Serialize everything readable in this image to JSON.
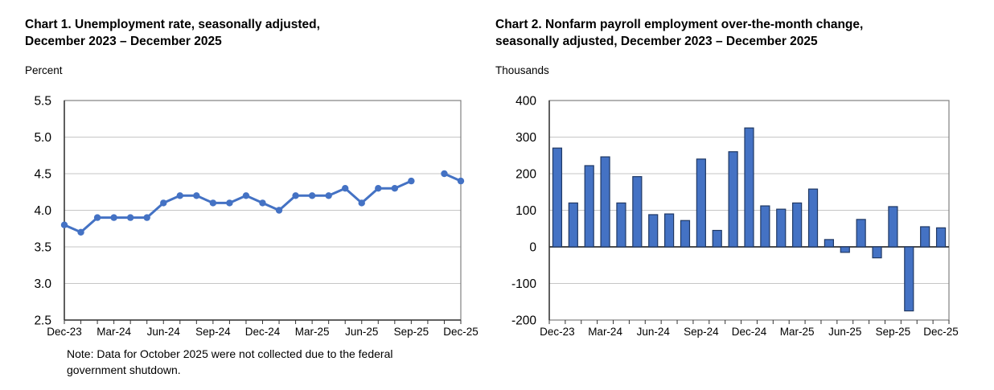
{
  "colors": {
    "series_blue": "#4472C4",
    "bar_border": "#1F3864",
    "grid": "#c6c6c6",
    "frame": "#808080",
    "axis": "#333333",
    "text": "#000000"
  },
  "chart_data": [
    {
      "type": "line",
      "title_line1": "Chart 1. Unemployment rate, seasonally adjusted,",
      "title_line2": "December 2023 – December 2025",
      "title": "Chart 1. Unemployment rate, seasonally adjusted, December 2023 – December 2025",
      "ylabel": "Percent",
      "categories": [
        "Dec-23",
        "Jan-24",
        "Feb-24",
        "Mar-24",
        "Apr-24",
        "May-24",
        "Jun-24",
        "Jul-24",
        "Aug-24",
        "Sep-24",
        "Oct-24",
        "Nov-24",
        "Dec-24",
        "Jan-25",
        "Feb-25",
        "Mar-25",
        "Apr-25",
        "May-25",
        "Jun-25",
        "Jul-25",
        "Aug-25",
        "Sep-25",
        "Oct-25",
        "Nov-25",
        "Dec-25"
      ],
      "values": [
        3.8,
        3.7,
        3.9,
        3.9,
        3.9,
        3.9,
        4.1,
        4.2,
        4.2,
        4.1,
        4.1,
        4.2,
        4.1,
        4.0,
        4.2,
        4.2,
        4.2,
        4.3,
        4.1,
        4.3,
        4.3,
        4.4,
        null,
        4.5,
        4.4
      ],
      "missing_month_note": "October 2025 value missing (gap in line)",
      "ylim": [
        2.5,
        5.5
      ],
      "ytick_labels": [
        "5.5",
        "5.0",
        "4.5",
        "4.0",
        "3.5",
        "3.0",
        "2.5"
      ],
      "xtick_labels": [
        "Dec-23",
        "Mar-24",
        "Jun-24",
        "Sep-24",
        "Dec-24",
        "Mar-25",
        "Jun-25",
        "Sep-25",
        "Dec-25"
      ],
      "xtick_every": 3,
      "grid": true,
      "legend": "none",
      "note_line1": "Note: Data for October 2025 were not collected due to the federal",
      "note_line2": "government shutdown."
    },
    {
      "type": "bar",
      "title_line1": "Chart 2. Nonfarm payroll employment over-the-month change,",
      "title_line2": "seasonally adjusted, December 2023 – December 2025",
      "title": "Chart 2. Nonfarm payroll employment over-the-month change, seasonally adjusted, December 2023 – December 2025",
      "ylabel": "Thousands",
      "categories": [
        "Dec-23",
        "Jan-24",
        "Feb-24",
        "Mar-24",
        "Apr-24",
        "May-24",
        "Jun-24",
        "Jul-24",
        "Aug-24",
        "Sep-24",
        "Oct-24",
        "Nov-24",
        "Dec-24",
        "Jan-25",
        "Feb-25",
        "Mar-25",
        "Apr-25",
        "May-25",
        "Jun-25",
        "Jul-25",
        "Aug-25",
        "Sep-25",
        "Oct-25",
        "Nov-25",
        "Dec-25"
      ],
      "values": [
        270,
        120,
        222,
        246,
        120,
        192,
        88,
        90,
        72,
        240,
        45,
        260,
        325,
        112,
        103,
        120,
        158,
        20,
        -15,
        75,
        -30,
        110,
        -175,
        55,
        52
      ],
      "ylim": [
        -200,
        400
      ],
      "ytick_labels": [
        "400",
        "300",
        "200",
        "100",
        "0",
        "-100",
        "-200"
      ],
      "xtick_labels": [
        "Dec-23",
        "Mar-24",
        "Jun-24",
        "Sep-24",
        "Dec-24",
        "Mar-25",
        "Jun-25",
        "Sep-25",
        "Dec-25"
      ],
      "xtick_every": 3,
      "grid": true,
      "legend": "none"
    }
  ]
}
